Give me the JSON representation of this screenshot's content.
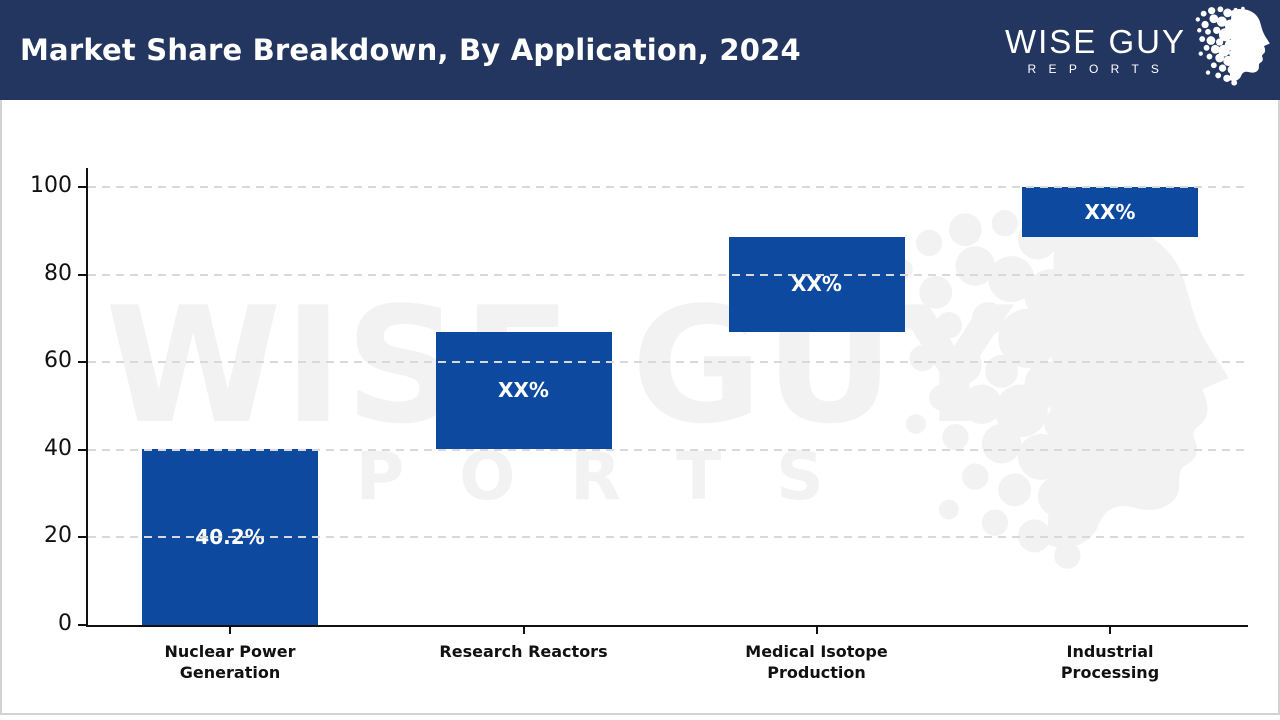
{
  "header": {
    "title": "Market Share Breakdown, By Application, 2024",
    "brand": {
      "name_top": "WISE GUY",
      "name_bottom": "R E P O R T S"
    }
  },
  "watermark": {
    "text_top": "WISE GUY",
    "text_bottom": "R E P O R T S"
  },
  "colors": {
    "header_bg": "#233660",
    "bar_fill": "#0d4a9f",
    "bar_label": "#ffffff",
    "grid_line": "#d9d9d9",
    "axis": "#111111",
    "watermark": "#f2f2f2"
  },
  "chart_data": {
    "type": "bar",
    "subtype": "floating-waterfall",
    "title": "Market Share Breakdown, By Application, 2024",
    "xlabel": "",
    "ylabel": "",
    "ylim": [
      0,
      100
    ],
    "y_ticks": [
      0,
      20,
      40,
      60,
      80,
      100
    ],
    "grid": "horizontal-dashed",
    "legend": "none",
    "categories": [
      "Nuclear Power Generation",
      "Research Reactors",
      "Medical Isotope Production",
      "Industrial Processing"
    ],
    "category_lines": [
      [
        "Nuclear Power",
        "Generation"
      ],
      [
        "Research Reactors"
      ],
      [
        "Medical Isotope",
        "Production"
      ],
      [
        "Industrial",
        "Processing"
      ]
    ],
    "segments": [
      {
        "category": "Nuclear Power Generation",
        "label": "40.2%",
        "start": 0,
        "end": 40.2
      },
      {
        "category": "Research Reactors",
        "label": "XX%",
        "start": 40.2,
        "end": 67
      },
      {
        "category": "Medical Isotope Production",
        "label": "XX%",
        "start": 67,
        "end": 88.5
      },
      {
        "category": "Industrial Processing",
        "label": "XX%",
        "start": 88.5,
        "end": 100
      }
    ]
  }
}
